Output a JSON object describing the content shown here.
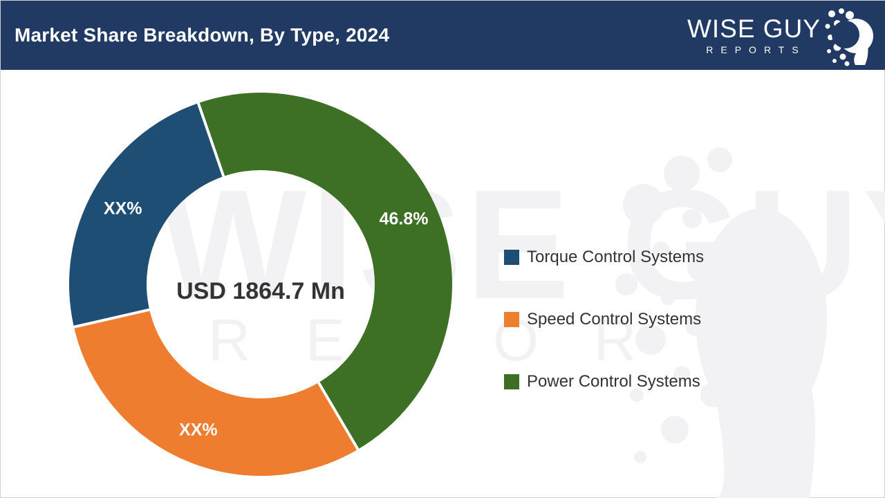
{
  "header": {
    "title": "Market Share Breakdown, By Type, 2024",
    "bg_color": "#203A64",
    "logo": {
      "line1": "WISE GUY",
      "line2": "REPORTS"
    }
  },
  "watermark": {
    "line1": "WISE GUY",
    "line2": "R E P O R T S"
  },
  "chart_data": {
    "type": "pie",
    "subtype": "donut",
    "title": "Market Share Breakdown, By Type, 2024",
    "center_label": "USD 1864.7 Mn",
    "start_angle_deg_from_top": -19,
    "separator_color": "#ffffff",
    "segments": [
      {
        "name": "Power Control Systems",
        "value_pct": 46.8,
        "label": "46.8%",
        "color": "#3D7024"
      },
      {
        "name": "Speed Control Systems",
        "value_pct": 29.9,
        "label": "XX%",
        "color": "#EE7D30"
      },
      {
        "name": "Torque Control Systems",
        "value_pct": 23.3,
        "label": "XX%",
        "color": "#1F4E74"
      }
    ],
    "legend_position": "right",
    "legend": [
      {
        "label": "Torque Control Systems",
        "color": "#1F4E74"
      },
      {
        "label": "Speed Control Systems",
        "color": "#EE7D30"
      },
      {
        "label": "Power Control Systems",
        "color": "#3D7024"
      }
    ]
  }
}
